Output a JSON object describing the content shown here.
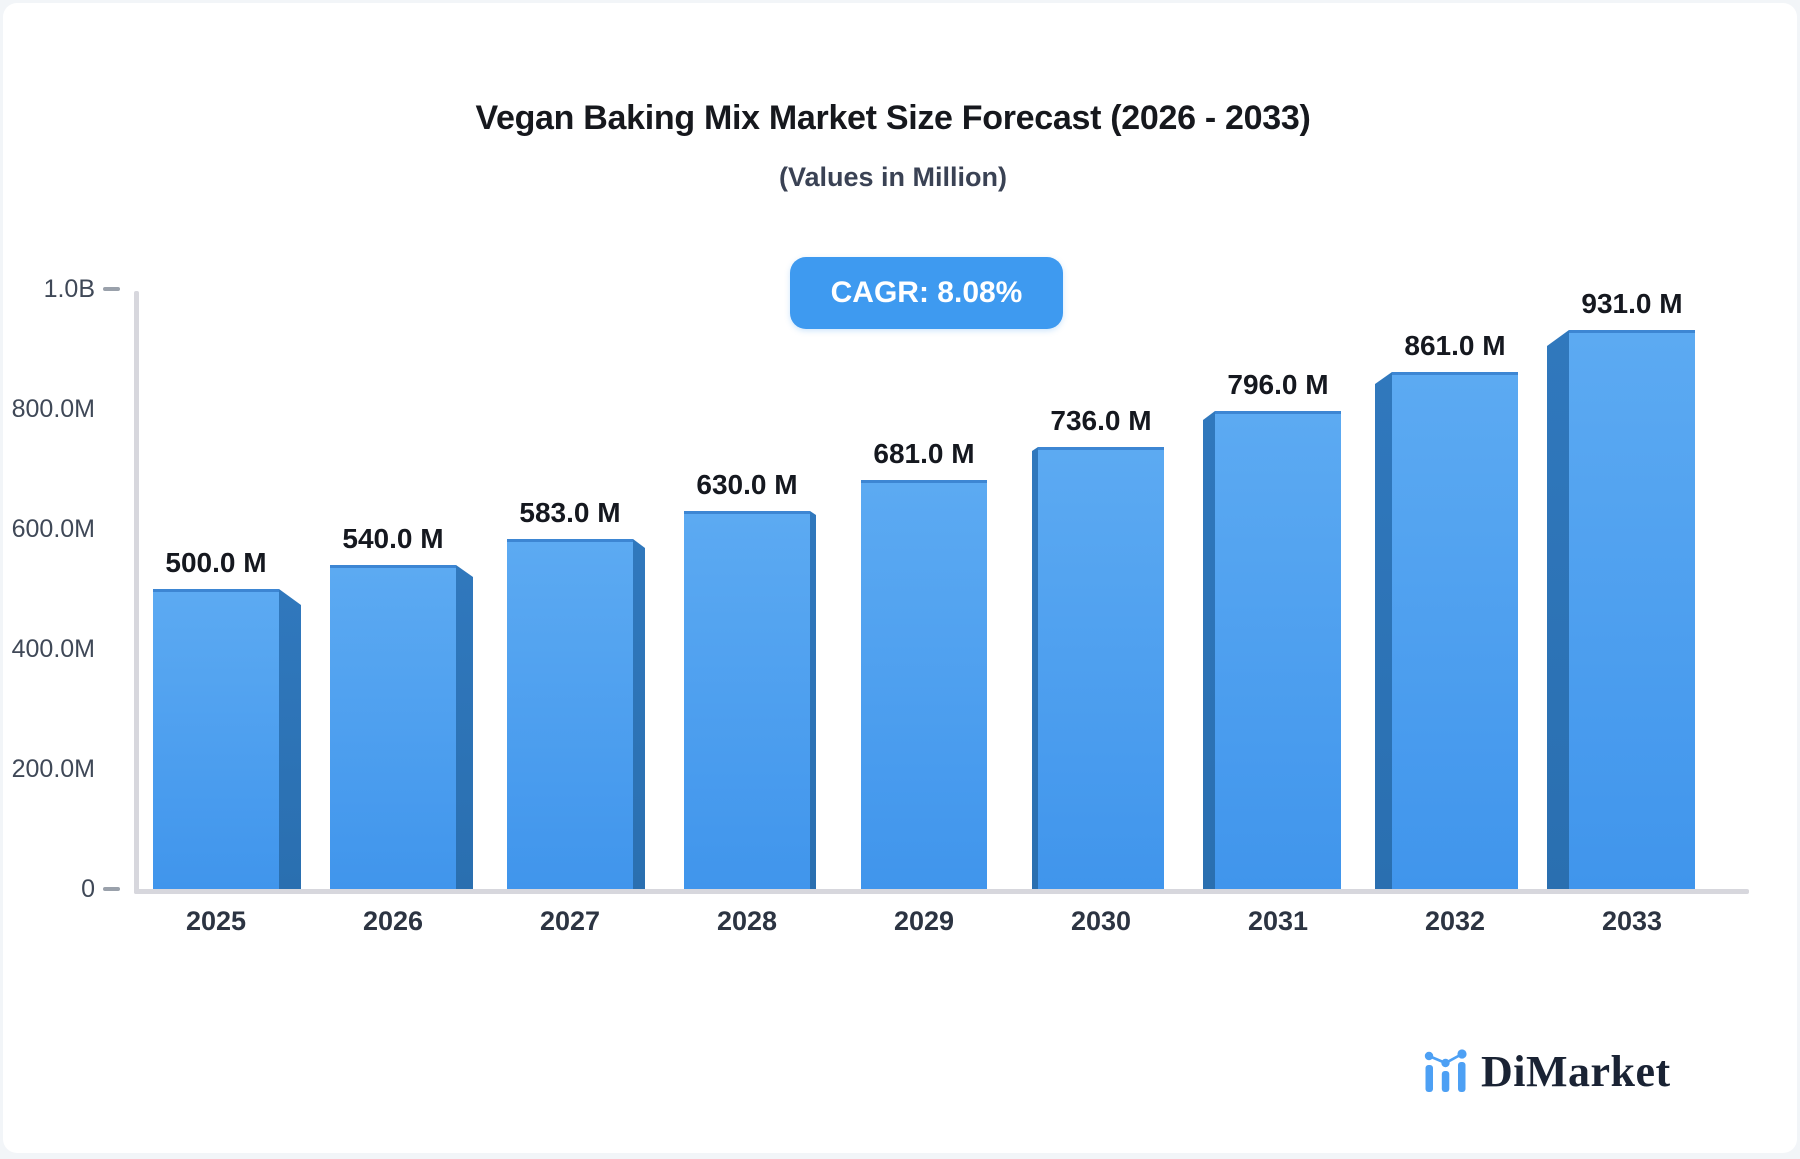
{
  "header": {
    "title": "Vegan Baking Mix Market Size Forecast (2026 - 2033)",
    "subtitle": "(Values in Million)",
    "cagr_badge": "CAGR: 8.08%"
  },
  "chart_data": {
    "type": "bar",
    "title": "Vegan Baking Mix Market Size Forecast (2026 - 2033)",
    "subtitle": "(Values in Million)",
    "categories": [
      "2025",
      "2026",
      "2027",
      "2028",
      "2029",
      "2030",
      "2031",
      "2032",
      "2033"
    ],
    "values": [
      500.0,
      540.0,
      583.0,
      630.0,
      681.0,
      736.0,
      796.0,
      861.0,
      931.0
    ],
    "value_labels": [
      "500.0 M",
      "540.0 M",
      "583.0 M",
      "630.0 M",
      "681.0 M",
      "736.0 M",
      "796.0 M",
      "861.0 M",
      "931.0 M"
    ],
    "ylim": [
      0,
      1000
    ],
    "y_ticks": [
      {
        "label": "1.0B",
        "value": 1000,
        "dash": true
      },
      {
        "label": "800.0M",
        "value": 800,
        "dash": false
      },
      {
        "label": "600.0M",
        "value": 600,
        "dash": false
      },
      {
        "label": "400.0M",
        "value": 400,
        "dash": false
      },
      {
        "label": "200.0M",
        "value": 200,
        "dash": false
      },
      {
        "label": "0",
        "value": 0,
        "dash": true
      }
    ],
    "grid": false,
    "legend": false,
    "annotations": [
      {
        "text": "CAGR: 8.08%",
        "position": "top-center"
      }
    ]
  },
  "branding": {
    "logo_text": "DiMarket",
    "logo_icon": "bar-chart-logo-icon"
  },
  "palette": {
    "bar_face_top": "#5caaf2",
    "bar_face_bottom": "#4095ec",
    "bar_side_top": "#3078bd",
    "bar_side_bottom": "#2a6fb0",
    "bar_top_edge": "#3d86d3",
    "badge_bg": "#3e9af0",
    "badge_text": "#ffffff",
    "axis_line": "#d7d7dd",
    "tick_dash": "#9aa1ab",
    "y_label_color": "#3f4857",
    "x_label_color": "#2c3442",
    "value_label_color": "#15181f",
    "title_color": "#16181d",
    "subtitle_color": "#3a4254",
    "logo_text_color": "#1a2334",
    "logo_icon_color": "#4da0f4"
  }
}
